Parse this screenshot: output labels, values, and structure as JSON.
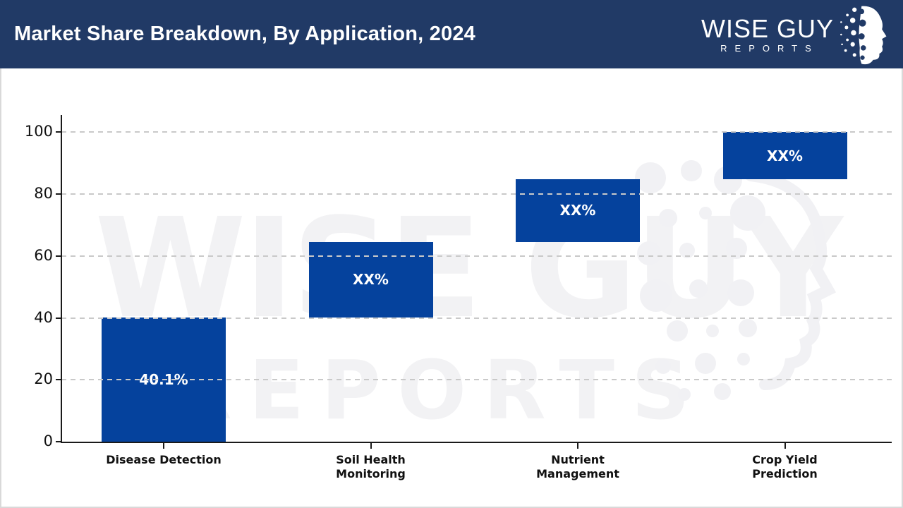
{
  "header": {
    "title": "Market Share Breakdown, By Application, 2024",
    "logo": {
      "line1": "WISE GUY",
      "line2": "REPORTS"
    }
  },
  "watermark": {
    "line1": "WISE GUY",
    "line2": "REPORTS"
  },
  "colors": {
    "header_bg": "#213a66",
    "bar": "#05429d",
    "bar_label": "#ffffff",
    "gridline": "#c9c9c9",
    "axis": "#1a1a1a",
    "watermark": "#f2f2f4",
    "canvas_border": "#d9d9d9"
  },
  "chart_data": {
    "type": "bar",
    "subtype": "waterfall",
    "title": "Market Share Breakdown, By Application, 2024",
    "categories": [
      "Disease Detection",
      "Soil Health Monitoring",
      "Nutrient Management",
      "Crop Yield Prediction"
    ],
    "category_lines": [
      [
        "Disease Detection"
      ],
      [
        "Soil Health",
        "Monitoring"
      ],
      [
        "Nutrient",
        "Management"
      ],
      [
        "Crop Yield",
        "Prediction"
      ]
    ],
    "segments": [
      {
        "category": "Disease Detection",
        "start": 0,
        "end": 40.1,
        "label": "40.1%"
      },
      {
        "category": "Soil Health Monitoring",
        "start": 40.1,
        "end": 64.6,
        "label": "XX%"
      },
      {
        "category": "Nutrient Management",
        "start": 64.6,
        "end": 84.8,
        "label": "XX%"
      },
      {
        "category": "Crop Yield Prediction",
        "start": 84.8,
        "end": 100,
        "label": "XX%"
      }
    ],
    "xlabel": "",
    "ylabel": "",
    "y_ticks": [
      0,
      20,
      40,
      60,
      80,
      100
    ],
    "ylim": [
      0,
      105
    ],
    "grid": "horizontal-dashed",
    "legend": "none"
  }
}
